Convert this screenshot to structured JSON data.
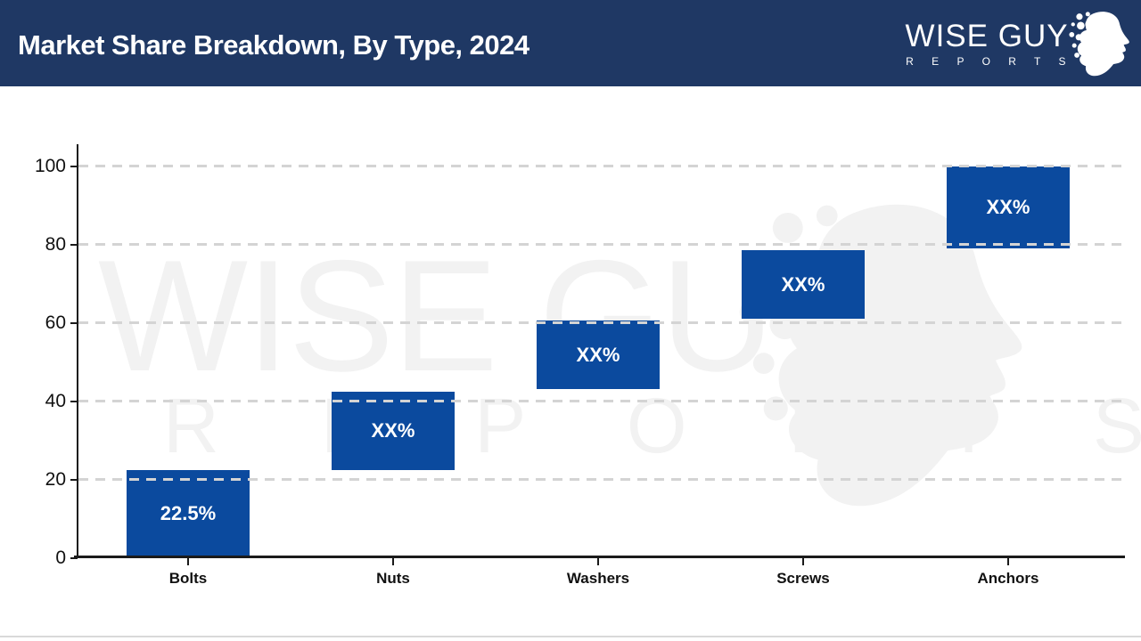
{
  "header": {
    "title": "Market Share Breakdown, By Type, 2024"
  },
  "logo": {
    "line1": "WISE GUY",
    "line2": "R E P O R T S",
    "head_icon": "dotted-head-profile"
  },
  "watermark": {
    "line1": "WISE GUY",
    "line2": "R E P O R T S",
    "head_icon": "dotted-head-profile"
  },
  "colors": {
    "header_bg": "#1f3864",
    "bar": "#0b4a9e",
    "bar_label": "#ffffff",
    "axis": "#1a1a1a",
    "grid": "#d4d4d4",
    "tick_text": "#111111",
    "watermark": "#f2f2f2"
  },
  "chart_data": {
    "type": "bar",
    "subtype": "waterfall",
    "title": "Market Share Breakdown, By Type, 2024",
    "xlabel": "",
    "ylabel": "",
    "categories": [
      "Bolts",
      "Nuts",
      "Washers",
      "Screws",
      "Anchors"
    ],
    "segments": [
      {
        "category": "Bolts",
        "start": 0,
        "end": 22.5,
        "label": "22.5%"
      },
      {
        "category": "Nuts",
        "start": 22.5,
        "end": 42.5,
        "label": "XX%"
      },
      {
        "category": "Washers",
        "start": 43,
        "end": 60.5,
        "label": "XX%"
      },
      {
        "category": "Screws",
        "start": 61,
        "end": 78.5,
        "label": "XX%"
      },
      {
        "category": "Anchors",
        "start": 79,
        "end": 100,
        "label": "XX%"
      }
    ],
    "y_ticks": [
      0,
      20,
      40,
      60,
      80,
      100
    ],
    "ylim": [
      0,
      106
    ],
    "grid": "horizontal-dashed",
    "legend": "none"
  }
}
